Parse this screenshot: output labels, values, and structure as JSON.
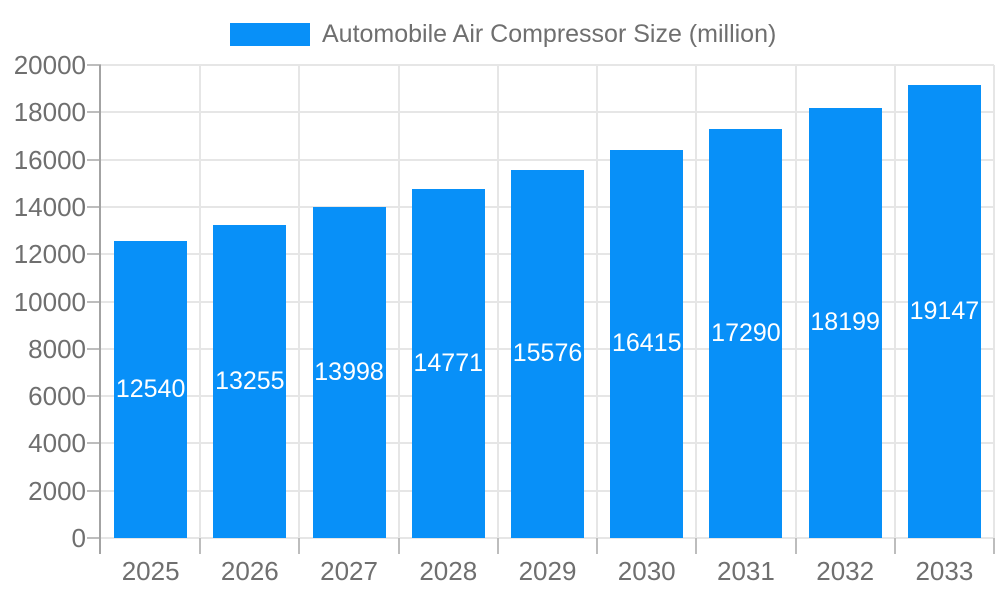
{
  "legend": {
    "title": "Automobile Air Compressor Size (million)",
    "swatch_color": "#0890f8"
  },
  "chart_data": {
    "type": "bar",
    "title": "Automobile Air Compressor Size (million)",
    "categories": [
      "2025",
      "2026",
      "2027",
      "2028",
      "2029",
      "2030",
      "2031",
      "2032",
      "2033"
    ],
    "values": [
      12540,
      13255,
      13998,
      14771,
      15576,
      16415,
      17290,
      18199,
      19147
    ],
    "xlabel": "",
    "ylabel": "",
    "ylim": [
      0,
      20000
    ],
    "ytick_step": 2000,
    "ytick_labels": [
      "0",
      "2000",
      "4000",
      "6000",
      "8000",
      "10000",
      "12000",
      "14000",
      "16000",
      "18000",
      "20000"
    ],
    "grid": true,
    "legend_position": "top",
    "colors": {
      "bar": "#0890f8",
      "bar_label": "#ffffff",
      "axis_text": "#6f6f6f",
      "gridline": "#e6e6e6",
      "axis_line": "#a3a3a3",
      "tick": "#bdbdbd"
    }
  }
}
